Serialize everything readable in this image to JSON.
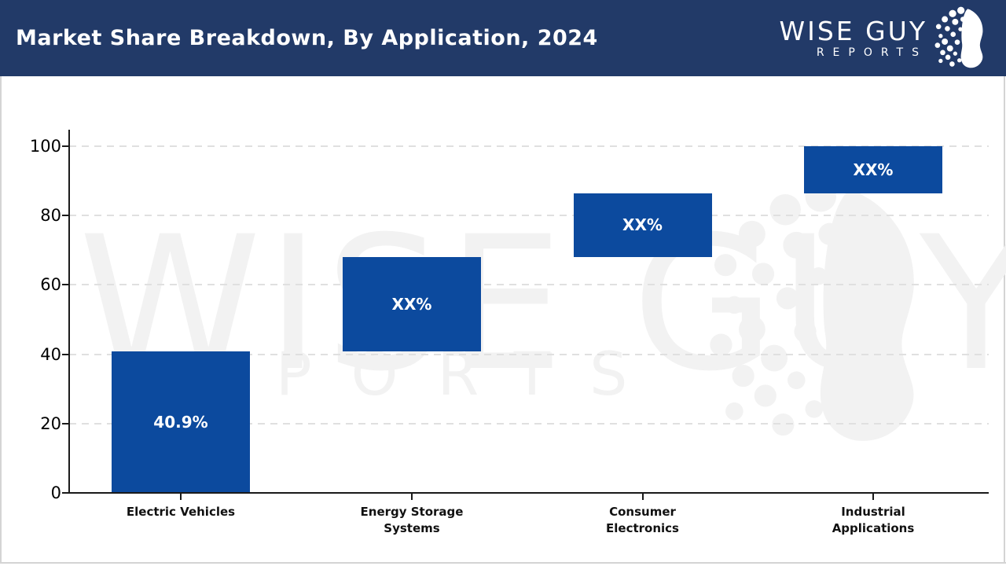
{
  "header": {
    "title": "Market Share Breakdown, By Application, 2024",
    "logo_line1": "WISE GUY",
    "logo_line2": "REPORTS"
  },
  "watermark": {
    "line1": "WISE GUY",
    "line2": "REPORTS"
  },
  "colors": {
    "header_bg": "#223a68",
    "bar": "#0c4a9e",
    "bar_label": "#ffffff",
    "gridline": "#e0e0e0",
    "axis": "#1a1a1a",
    "watermark": "#f2f2f2"
  },
  "chart_data": {
    "type": "bar",
    "variant": "waterfall-floating-bars",
    "title": "Market Share Breakdown, By Application, 2024",
    "categories": [
      "Electric Vehicles",
      "Energy Storage Systems",
      "Consumer Electronics",
      "Industrial Applications"
    ],
    "category_lines": [
      [
        "Electric Vehicles"
      ],
      [
        "Energy Storage",
        "Systems"
      ],
      [
        "Consumer",
        "Electronics"
      ],
      [
        "Industrial",
        "Applications"
      ]
    ],
    "bars": [
      {
        "label": "40.9%",
        "start": 0,
        "end": 40.9
      },
      {
        "label": "XX%",
        "start": 40.9,
        "end": 68
      },
      {
        "label": "XX%",
        "start": 68,
        "end": 86.5
      },
      {
        "label": "XX%",
        "start": 86.5,
        "end": 100
      }
    ],
    "xlabel": "",
    "ylabel": "",
    "ylim": [
      0,
      100
    ],
    "yticks": [
      0,
      20,
      40,
      60,
      80,
      100
    ],
    "grid": "horizontal-dashed",
    "legend": "none"
  }
}
